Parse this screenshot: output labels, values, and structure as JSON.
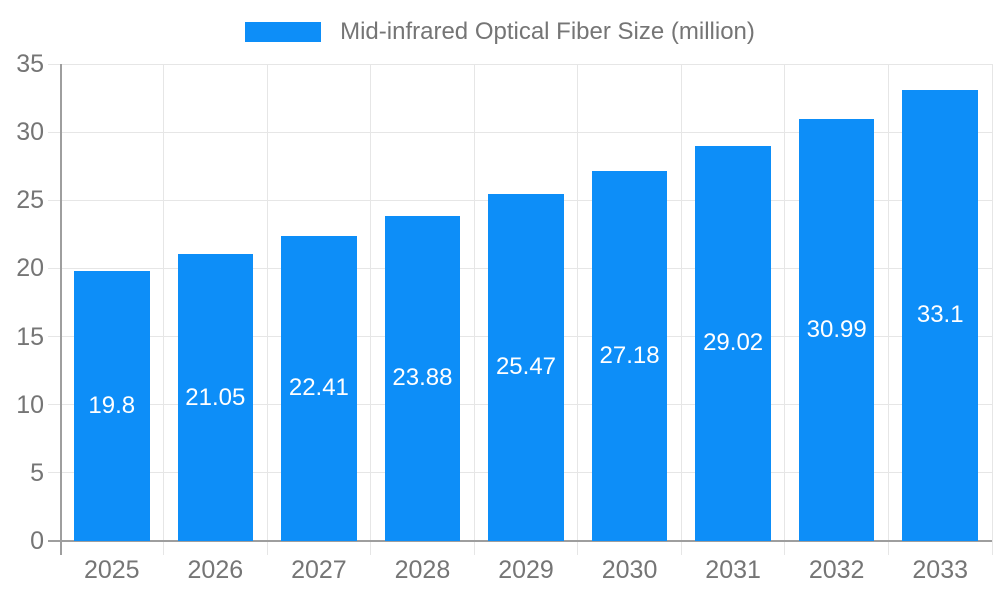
{
  "chart_data": {
    "type": "bar",
    "title": "",
    "legend": {
      "label": "Mid-infrared Optical Fiber Size (million)",
      "position": "top-center"
    },
    "categories": [
      "2025",
      "2026",
      "2027",
      "2028",
      "2029",
      "2030",
      "2031",
      "2032",
      "2033"
    ],
    "series": [
      {
        "name": "Mid-infrared Optical Fiber Size (million)",
        "values": [
          19.8,
          21.05,
          22.41,
          23.88,
          25.47,
          27.18,
          29.02,
          30.99,
          33.1
        ],
        "value_labels": [
          "19.8",
          "21.05",
          "22.41",
          "23.88",
          "25.47",
          "27.18",
          "29.02",
          "30.99",
          "33.1"
        ]
      }
    ],
    "xlabel": "",
    "ylabel": "",
    "ylim": [
      0,
      35
    ],
    "ytick_interval": 5,
    "ytick_labels": [
      "0",
      "5",
      "10",
      "15",
      "20",
      "25",
      "30",
      "35"
    ],
    "grid": true,
    "colors": {
      "bar": "#0d8ef8",
      "grid_line": "#e6e6e6",
      "axis_line": "#9e9e9e",
      "axis_text": "#757575",
      "bar_label_text": "#ffffff",
      "background": "#ffffff"
    }
  }
}
